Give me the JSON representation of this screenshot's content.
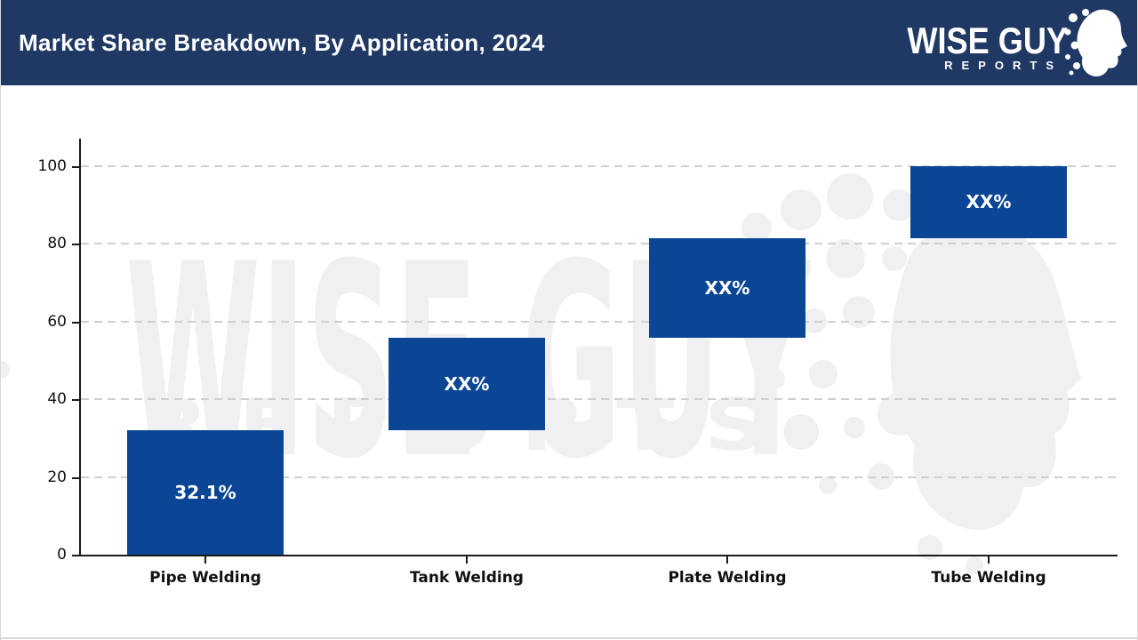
{
  "header": {
    "title": "Market Share Breakdown, By Application, 2024",
    "logo": {
      "line1": "WISE GUY",
      "line2": "REPORTS"
    }
  },
  "watermark": {
    "line1": "WISE GUY",
    "line2": "R E P O R T S"
  },
  "colors": {
    "header_bg": "#1F3864",
    "bar_fill": "#0B4696",
    "bar_label": "#FFFFFF",
    "gridline": "#CFCFCF",
    "axis": "#1A1A1A",
    "watermark": "#F0F0F2"
  },
  "chart_data": {
    "type": "bar",
    "subtype": "waterfall",
    "title": "Market Share Breakdown, By Application, 2024",
    "categories": [
      "Pipe Welding",
      "Tank Welding",
      "Plate Welding",
      "Tube Welding"
    ],
    "segments": [
      {
        "category": "Pipe Welding",
        "start": 0,
        "end": 32.1,
        "value": 32.1,
        "label": "32.1%"
      },
      {
        "category": "Tank Welding",
        "start": 32.1,
        "end": 55.8,
        "value": 23.7,
        "label": "XX%"
      },
      {
        "category": "Plate Welding",
        "start": 55.8,
        "end": 81.5,
        "value": 25.7,
        "label": "XX%"
      },
      {
        "category": "Tube Welding",
        "start": 81.5,
        "end": 100,
        "value": 18.5,
        "label": "XX%"
      }
    ],
    "xlabel": "",
    "ylabel": "",
    "yticks": [
      0,
      20,
      40,
      60,
      80,
      100
    ],
    "ylim": [
      0,
      107
    ],
    "grid": "horizontal-dashed",
    "legend": "none"
  }
}
